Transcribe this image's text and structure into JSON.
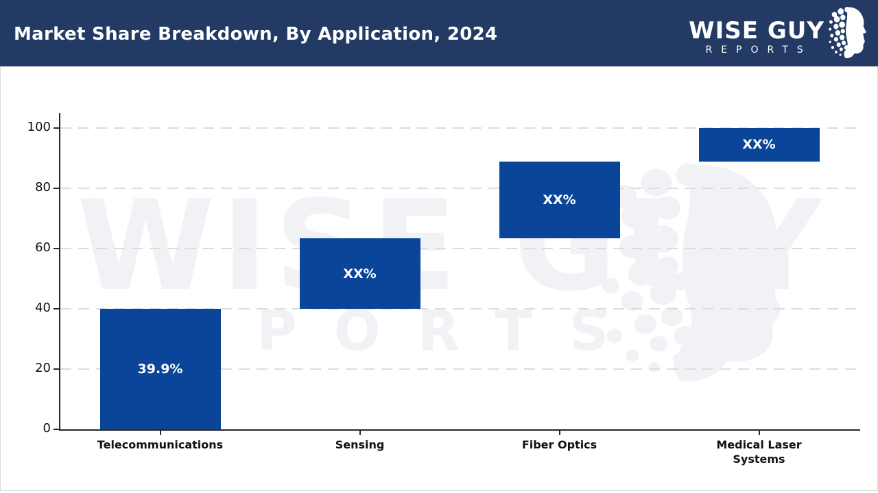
{
  "header": {
    "title": "Market Share Breakdown, By Application, 2024",
    "bg_color": "#223a64",
    "logo": {
      "line1": "WISE GUY",
      "line2": "REPORTS"
    }
  },
  "watermark": {
    "line1": "WISE GUY",
    "line2": "REPORTS"
  },
  "chart_data": {
    "type": "bar",
    "subtype": "waterfall",
    "title": "Market Share Breakdown, By Application, 2024",
    "xlabel": "",
    "ylabel": "",
    "ylim": [
      0,
      105
    ],
    "yticks": [
      0,
      20,
      40,
      60,
      80,
      100
    ],
    "grid": "horizontal-dashed",
    "legend": "none",
    "bar_color": "#0b4599",
    "bar_label_color": "#ffffff",
    "categories": [
      "Telecommunications",
      "Sensing",
      "Fiber Optics",
      "Medical Laser\nSystems"
    ],
    "segments": [
      {
        "category": "Telecommunications",
        "start": 0,
        "end": 39.9,
        "label": "39.9%"
      },
      {
        "category": "Sensing",
        "start": 39.9,
        "end": 63.3,
        "label": "XX%"
      },
      {
        "category": "Fiber Optics",
        "start": 63.3,
        "end": 88.9,
        "label": "XX%"
      },
      {
        "category": "Medical Laser Systems",
        "start": 88.9,
        "end": 100,
        "label": "XX%"
      }
    ]
  }
}
